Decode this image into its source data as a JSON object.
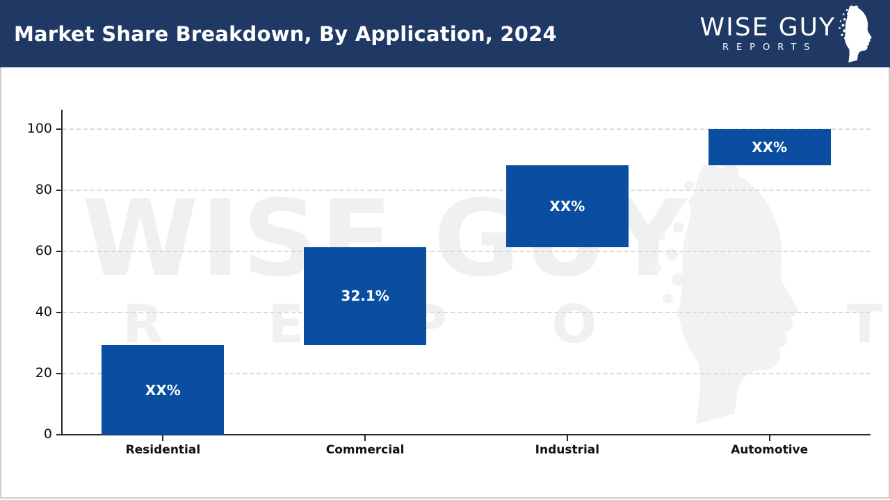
{
  "header": {
    "title": "Market Share Breakdown, By Application, 2024",
    "logo": {
      "line1": "WISE GUY",
      "line2": "REPORTS"
    }
  },
  "watermark": {
    "line1": "WISE GUY",
    "line2": "R E P O R T S"
  },
  "colors": {
    "header_bg": "#1f3864",
    "bar": "#0b4da1",
    "grid": "#d9d9d9",
    "axis": "#262626",
    "bar_label": "#ffffff",
    "watermark": "#f0f0f0"
  },
  "chart_data": {
    "type": "bar",
    "subtype": "waterfall",
    "title": "Market Share Breakdown, By Application, 2024",
    "categories": [
      "Residential",
      "Commercial",
      "Industrial",
      "Automotive"
    ],
    "segments": [
      {
        "category": "Residential",
        "start": 0,
        "end": 29.3,
        "value": 29.3,
        "label": "XX%"
      },
      {
        "category": "Commercial",
        "start": 29.3,
        "end": 61.4,
        "value": 32.1,
        "label": "32.1%"
      },
      {
        "category": "Industrial",
        "start": 61.4,
        "end": 88.2,
        "value": 26.8,
        "label": "XX%"
      },
      {
        "category": "Automotive",
        "start": 88.2,
        "end": 100,
        "value": 11.8,
        "label": "XX%"
      }
    ],
    "yticks": [
      0,
      20,
      40,
      60,
      80,
      100
    ],
    "ylim": [
      0,
      106
    ],
    "xlabel": "",
    "ylabel": "",
    "grid": "horizontal-dashed",
    "legend": "none"
  }
}
